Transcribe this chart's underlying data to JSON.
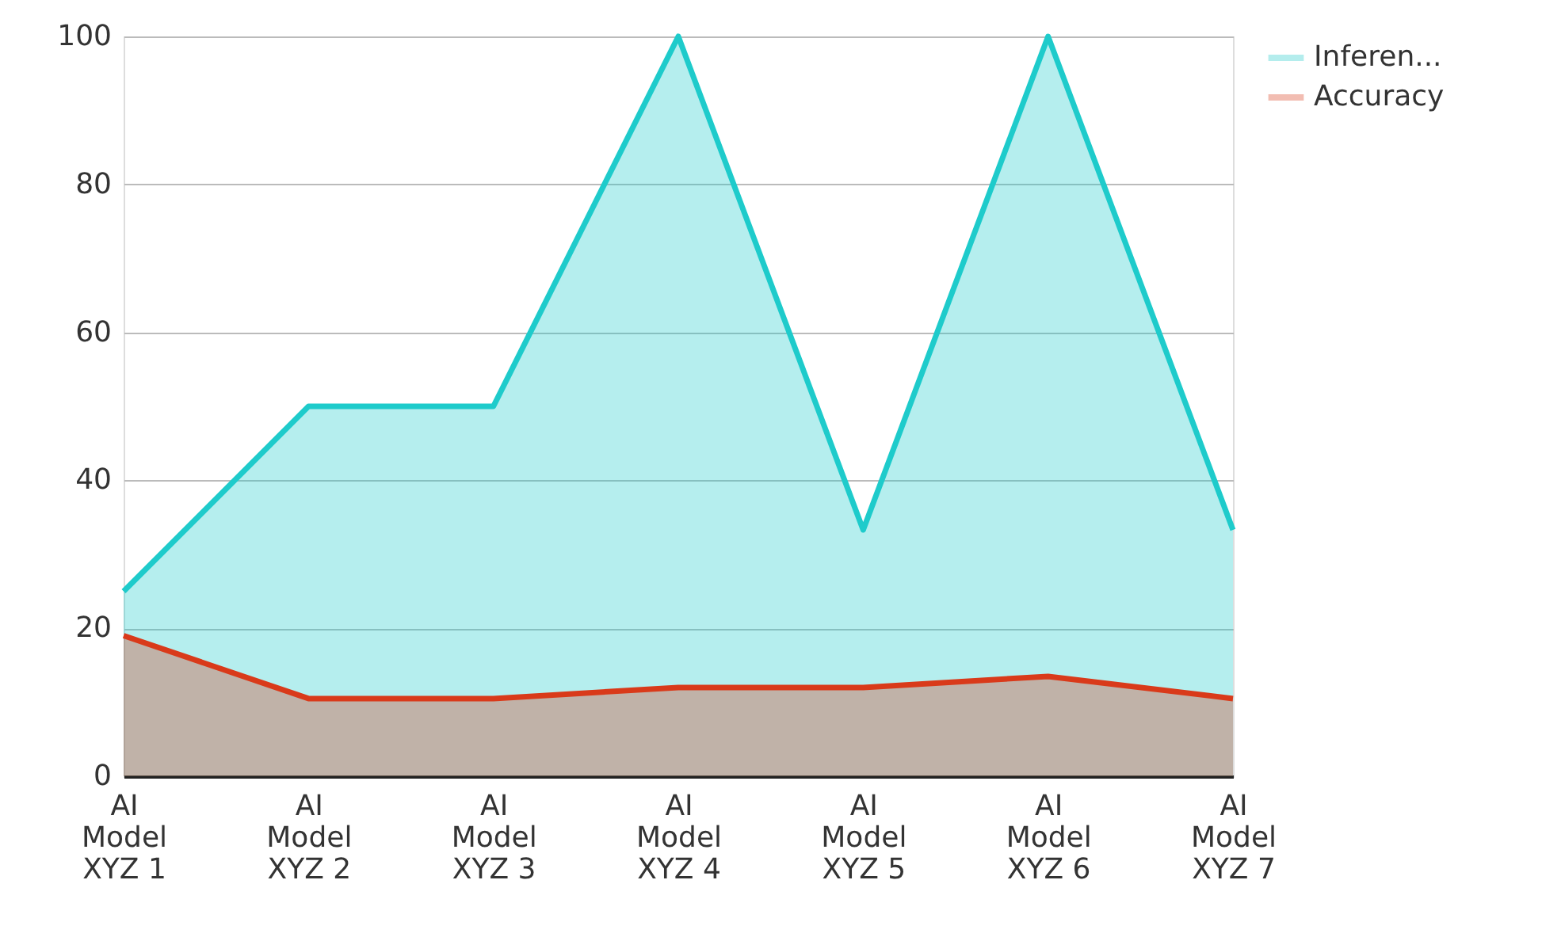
{
  "chart_data": {
    "type": "area",
    "categories": [
      "AI\nModel\nXYZ 1",
      "AI\nModel\nXYZ 2",
      "AI\nModel\nXYZ 3",
      "AI\nModel\nXYZ 4",
      "AI\nModel\nXYZ 5",
      "AI\nModel\nXYZ 6",
      "AI\nModel\nXYZ 7"
    ],
    "series": [
      {
        "name": "Inferen...",
        "color": "#1ecbcb",
        "values": [
          25,
          50,
          50,
          100,
          33.3,
          100,
          33.3
        ]
      },
      {
        "name": "Accuracy",
        "color": "#d93a1a",
        "values": [
          19,
          10.5,
          10.5,
          12,
          12,
          13.5,
          10.5
        ]
      }
    ],
    "ylim": [
      0,
      100
    ],
    "yticks": [
      0,
      20,
      40,
      60,
      80,
      100
    ],
    "grid": "y",
    "legend": "top right"
  }
}
